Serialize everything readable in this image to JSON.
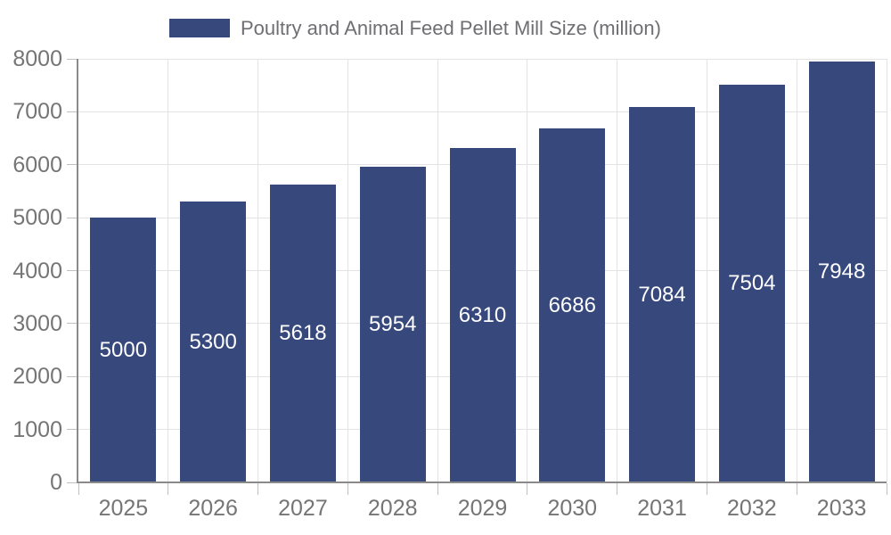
{
  "legend": {
    "label": "Poultry and Animal Feed Pellet Mill Size (million)"
  },
  "chart_data": {
    "type": "bar",
    "title": "Poultry and Animal Feed Pellet Mill Size (million)",
    "categories": [
      "2025",
      "2026",
      "2027",
      "2028",
      "2029",
      "2030",
      "2031",
      "2032",
      "2033"
    ],
    "values": [
      5000,
      5300,
      5618,
      5954,
      6310,
      6686,
      7084,
      7504,
      7948
    ],
    "xlabel": "",
    "ylabel": "",
    "ylim": [
      0,
      8000
    ],
    "yticks": [
      0,
      1000,
      2000,
      3000,
      4000,
      5000,
      6000,
      7000,
      8000
    ],
    "grid": true,
    "legend_position": "top",
    "value_labels": "inside-center",
    "colors": {
      "bar": "#37487D",
      "value_label": "#FFFFFF",
      "axis_text": "#757575",
      "axis_line": "#8A8A8A",
      "gridline": "#E3E3E3",
      "tick": "#C0C0C0",
      "legend_text": "#6E6E73"
    }
  }
}
